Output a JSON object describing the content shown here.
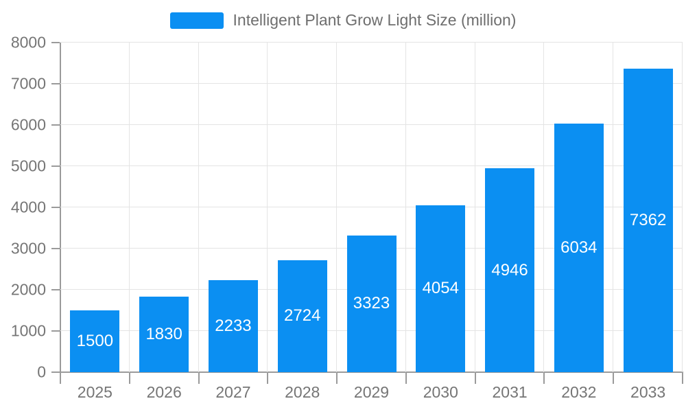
{
  "legend": {
    "label": "Intelligent Plant Grow Light Size (million)"
  },
  "chart_data": {
    "type": "bar",
    "title": "Intelligent Plant Grow Light Size (million)",
    "categories": [
      "2025",
      "2026",
      "2027",
      "2028",
      "2029",
      "2030",
      "2031",
      "2032",
      "2033"
    ],
    "series": [
      {
        "name": "Intelligent Plant Grow Light Size (million)",
        "values": [
          1500,
          1830,
          2233,
          2724,
          3323,
          4054,
          4946,
          6034,
          7362
        ]
      }
    ],
    "xlabel": "",
    "ylabel": "",
    "ylim": [
      0,
      8000
    ],
    "ytick_step": 1000,
    "grid": true,
    "legend_position": "top-center",
    "value_labels": "inside-center",
    "colors": {
      "bar": "#0b8ff2",
      "bar_label": "#ffffff",
      "axis_line": "#9a9a9a",
      "grid_line": "#e4e4e4",
      "tick_text": "#757575",
      "legend_text": "#6e6e6e"
    }
  }
}
